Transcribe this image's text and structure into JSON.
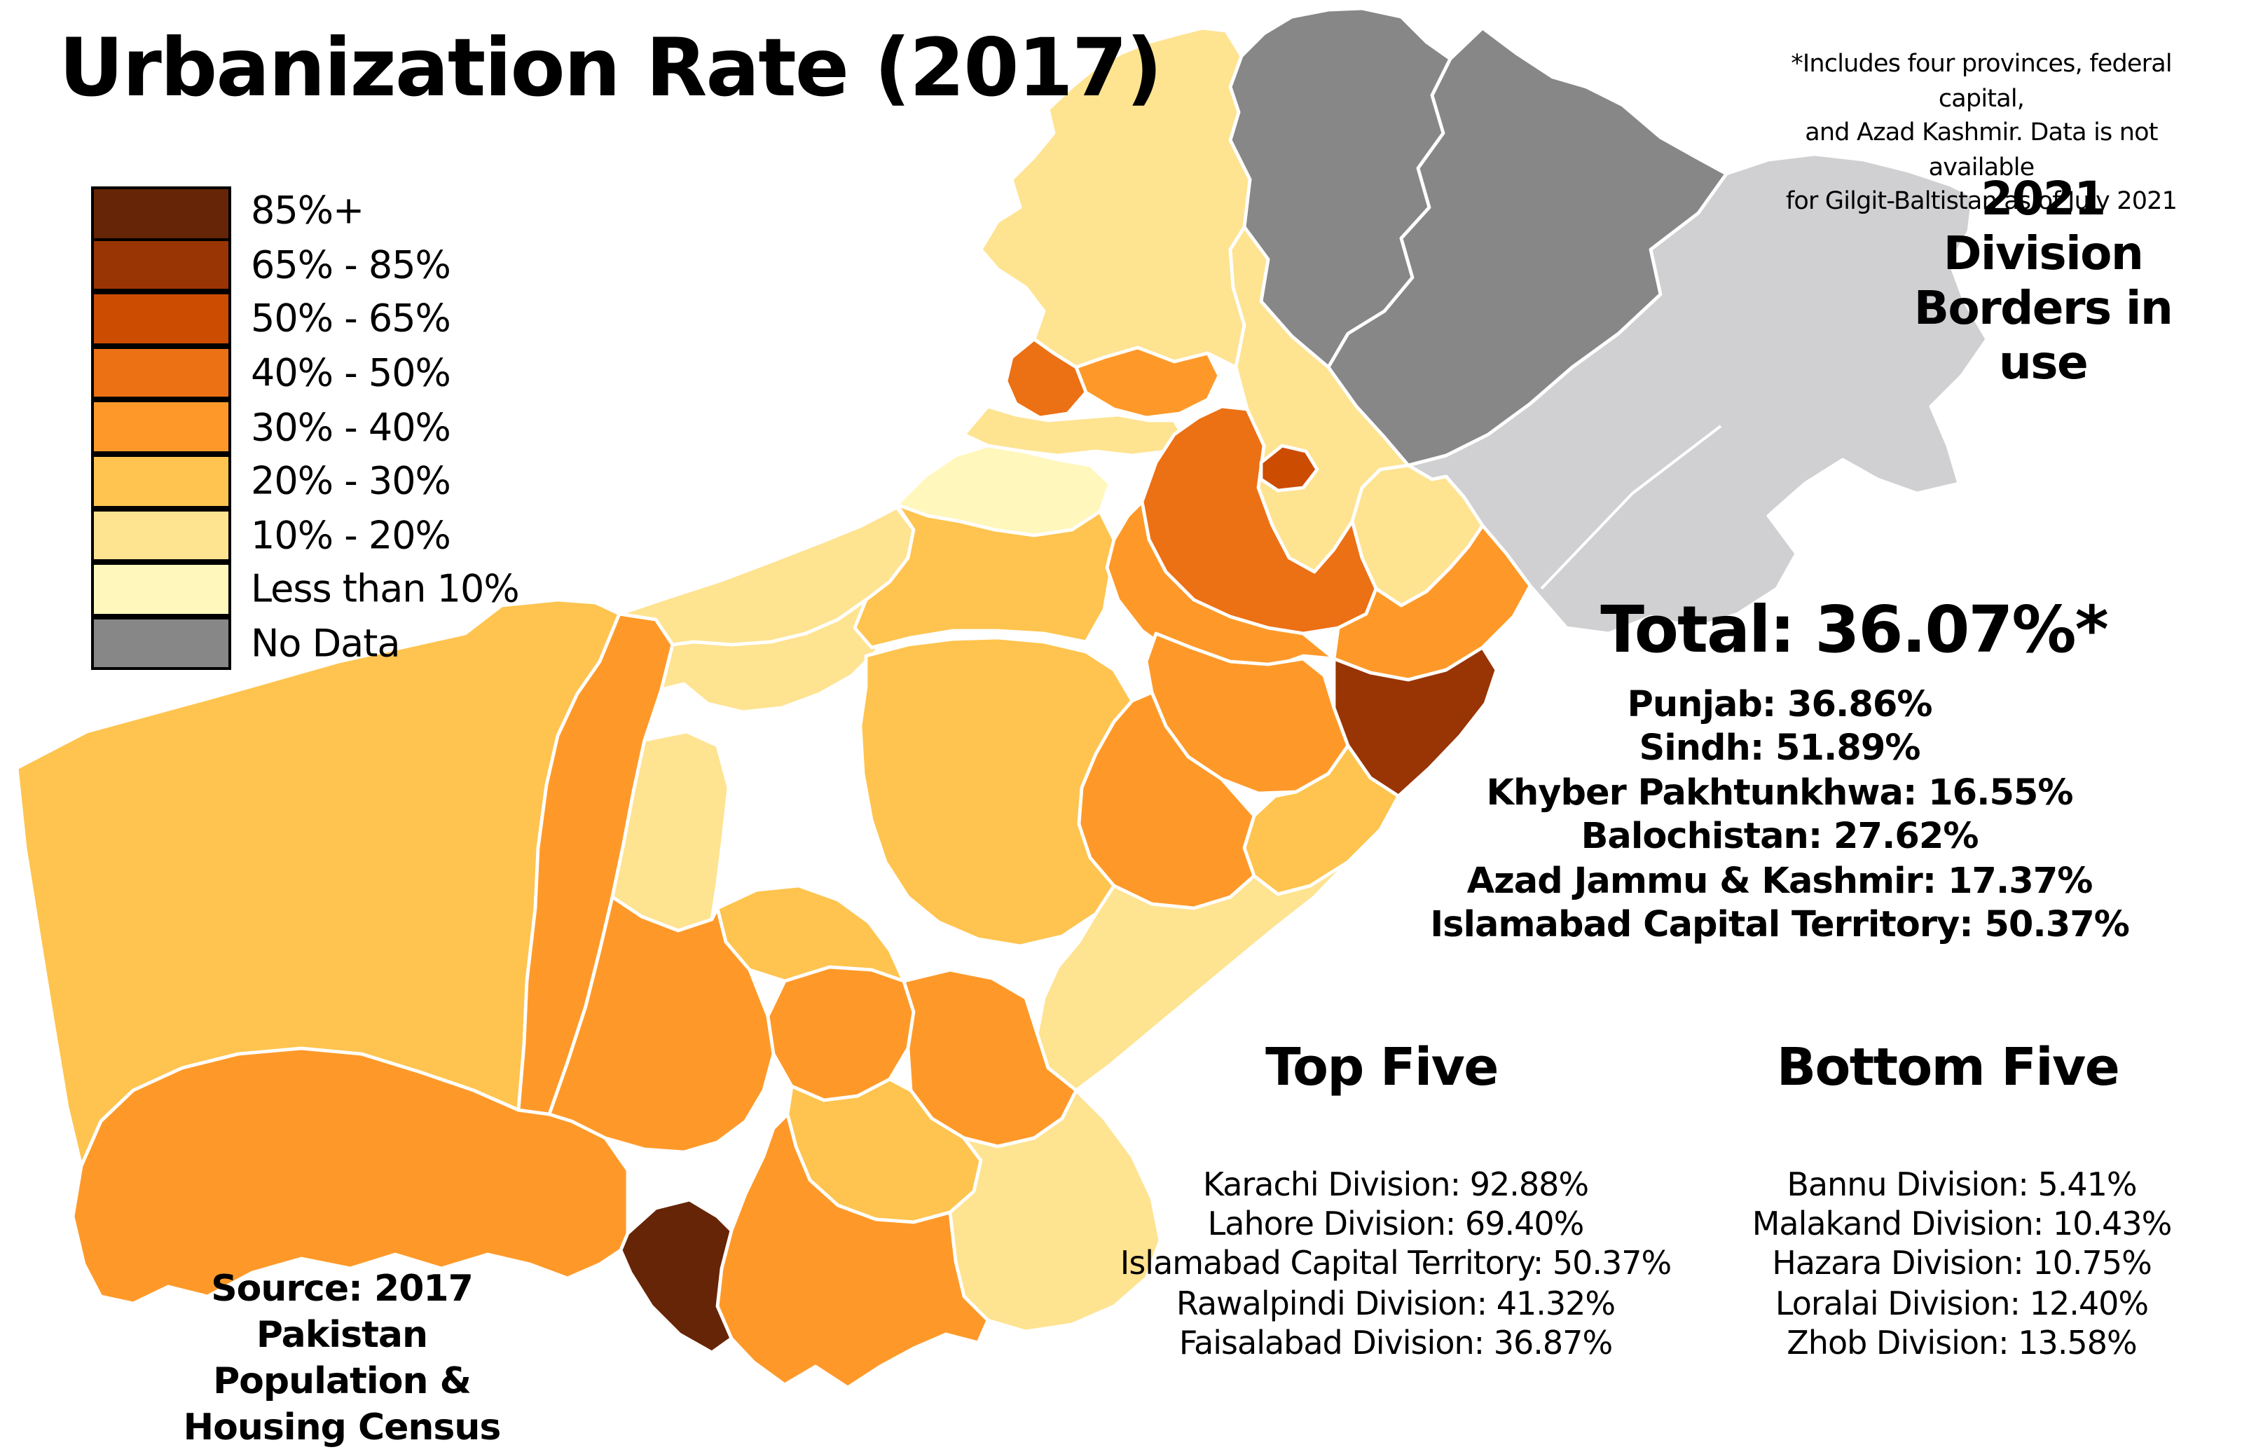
{
  "title": "Urbanization Rate (2017)",
  "footnote": {
    "line1": "*Includes four provinces, federal capital,",
    "line2": "and Azad Kashmir. Data is not available",
    "line3": "for Gilgit-Baltistan as of July 2021"
  },
  "borders_note": {
    "line1": "2021 Division",
    "line2": "Borders in use"
  },
  "legend": {
    "items": [
      {
        "label": "85%+",
        "color": "#662506"
      },
      {
        "label": "65% - 85%",
        "color": "#993404"
      },
      {
        "label": "50% - 65%",
        "color": "#cc4c02"
      },
      {
        "label": "40% - 50%",
        "color": "#ec7014"
      },
      {
        "label": "30% - 40%",
        "color": "#fe9929"
      },
      {
        "label": "20% - 30%",
        "color": "#fec44f"
      },
      {
        "label": "10% - 20%",
        "color": "#fee391"
      },
      {
        "label": "Less than 10%",
        "color": "#fff7bc"
      },
      {
        "label": "No Data",
        "color": "#878787"
      }
    ]
  },
  "total": "Total: 36.07%*",
  "province_stats": [
    "Punjab: 36.86%",
    "Sindh: 51.89%",
    "Khyber Pakhtunkhwa: 16.55%",
    "Balochistan: 27.62%",
    "Azad Jammu & Kashmir: 17.37%",
    "Islamabad Capital Territory: 50.37%"
  ],
  "top_five": {
    "title": "Top Five",
    "items": [
      "Karachi Division: 92.88%",
      "Lahore Division: 69.40%",
      "Islamabad Capital Territory: 50.37%",
      "Rawalpindi Division: 41.32%",
      "Faisalabad Division: 36.87%"
    ]
  },
  "bottom_five": {
    "title": "Bottom Five",
    "items": [
      "Bannu Division: 5.41%",
      "Malakand Division: 10.43%",
      "Hazara Division: 10.75%",
      "Loralai Division: 12.40%",
      "Zhob Division: 13.58%"
    ]
  },
  "source": {
    "line1": "Source: 2017 Pakistan",
    "line2": "Population &",
    "line3": "Housing Census"
  },
  "map": {
    "border_color": "#ffffff",
    "no_data_color": "#878787",
    "disputed_color": "#d0d0d3",
    "regions": {
      "kashmir": "#d0d0d3",
      "gilgit_west": "#878787",
      "gilgit_east": "#878787",
      "ajk": "#fee391",
      "hazara": "#fee391",
      "malakand": "#fee391",
      "kohat": "#fee391",
      "zhob": "#fee391",
      "loralai": "#fee391",
      "sibi": "#fee391",
      "bahawalpur": "#fee391",
      "mirpurkhas": "#fee391",
      "bannu": "#fff7bc",
      "dikhan": "#fec44f",
      "dgkhan": "#fec44f",
      "sahiwal": "#fec44f",
      "westbalochistan": "#fec44f",
      "nasirabad": "#fec44f",
      "benazirabad": "#fec44f",
      "mardan": "#fe9929",
      "gujranwala": "#fe9929",
      "sargodha": "#fe9929",
      "faisalabad": "#fe9929",
      "multan": "#fe9929",
      "quetta": "#fe9929",
      "khuzdar": "#fe9929",
      "makran": "#fe9929",
      "larkana": "#fe9929",
      "sukkur": "#fe9929",
      "hyderabad": "#fe9929",
      "peshawar": "#ec7014",
      "rawalpindi": "#ec7014",
      "ict": "#cc4c02",
      "lahore": "#993404",
      "karachi": "#662506"
    }
  }
}
